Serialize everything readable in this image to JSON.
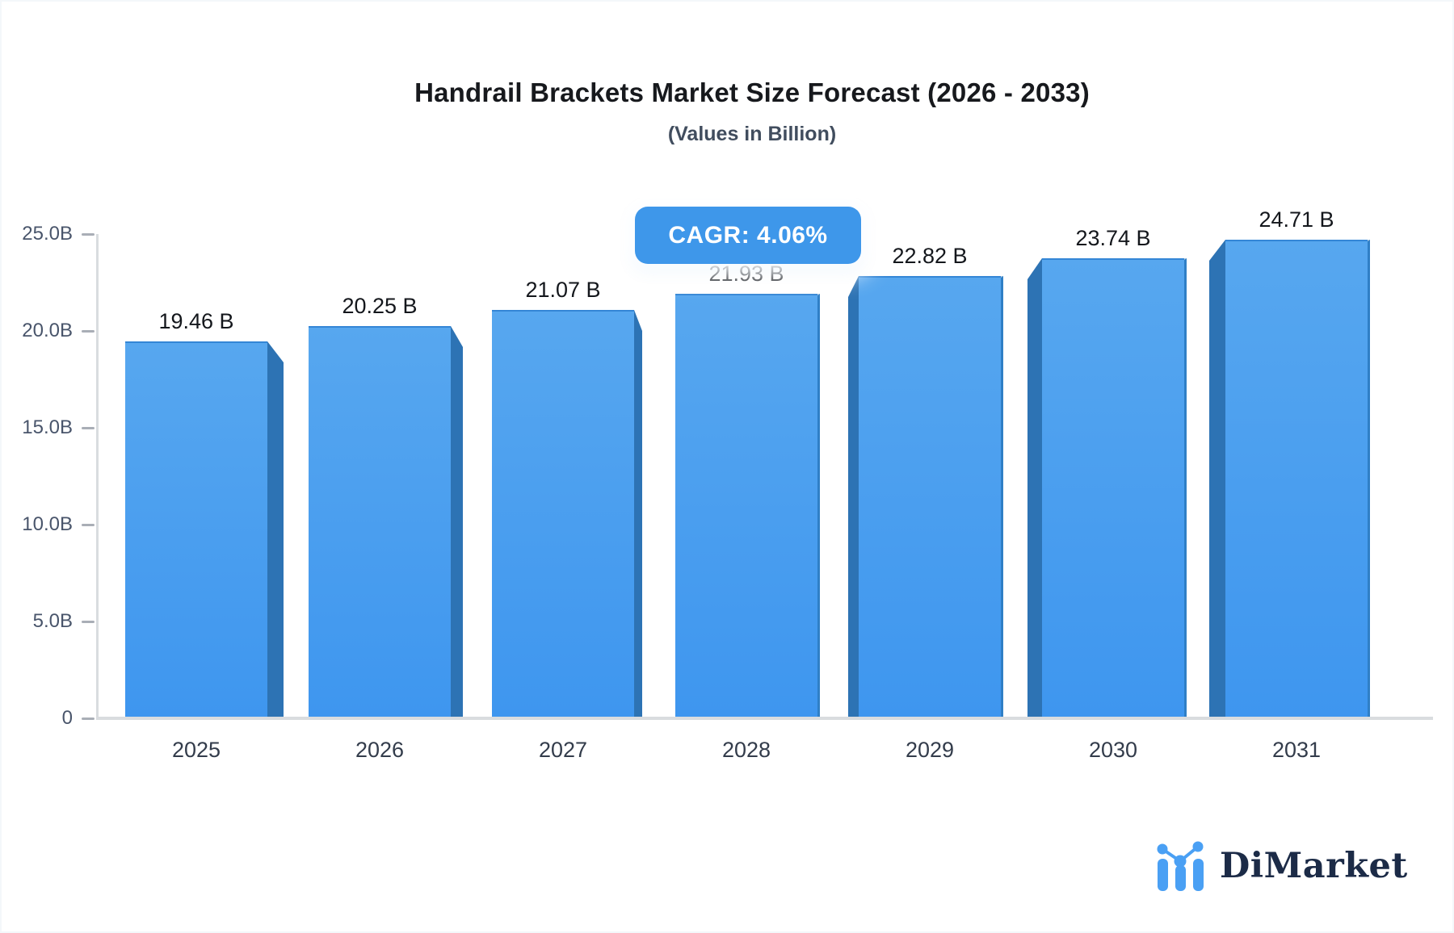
{
  "header": {
    "title": "Handrail Brackets Market Size Forecast (2026 - 2033)",
    "subtitle": "(Values in Billion)"
  },
  "badge": {
    "label": "CAGR: 4.06%"
  },
  "chart_data": {
    "type": "bar",
    "title": "Handrail Brackets Market Size Forecast (2026 - 2033)",
    "subtitle": "(Values in Billion)",
    "categories": [
      "2025",
      "2026",
      "2027",
      "2028",
      "2029",
      "2030",
      "2031"
    ],
    "values": [
      19.46,
      20.25,
      21.07,
      21.93,
      22.82,
      23.74,
      24.71
    ],
    "value_labels": [
      "19.46 B",
      "20.25 B",
      "21.07 B",
      "21.93 B",
      "22.82 B",
      "23.74 B",
      "24.71 B"
    ],
    "y_ticks": [
      {
        "label": "25.0B",
        "value": 25
      },
      {
        "label": "20.0B",
        "value": 20
      },
      {
        "label": "15.0B",
        "value": 15
      },
      {
        "label": "10.0B",
        "value": 10
      },
      {
        "label": "5.0B",
        "value": 5
      },
      {
        "label": "0",
        "value": 0
      }
    ],
    "ylim": [
      0,
      25
    ],
    "xlabel": "",
    "ylabel": "",
    "grid": false,
    "legend": "none",
    "cagr": "4.06%"
  },
  "branding": {
    "logo_text": "DiMarket"
  },
  "colors": {
    "bar_face_top": "#57a7ef",
    "bar_face_bottom": "#3e96ef",
    "bar_side": "#2d73b4",
    "bar_edge": "#2f7fc6",
    "badge_bg": "#3e97ea",
    "axis_line": "#d9dcdf",
    "tick_dash": "#a9aeb6",
    "tick_label": "#49556b",
    "x_label": "#333c4b",
    "logo_text": "#1c2b47",
    "logo_blue": "#4aa0f4"
  }
}
